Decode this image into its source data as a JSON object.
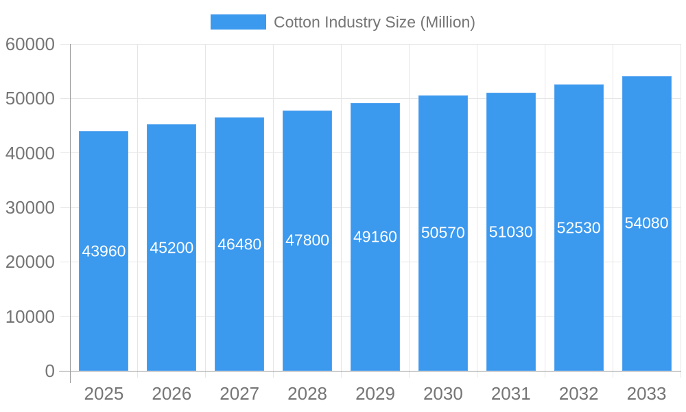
{
  "legend": {
    "label": "Cotton Industry Size (Million)",
    "swatch_color": "#3b99ee"
  },
  "chart_data": {
    "type": "bar",
    "title": "Cotton Industry Size (Million)",
    "series_name": "Cotton Industry Size (Million)",
    "categories": [
      "2025",
      "2026",
      "2027",
      "2028",
      "2029",
      "2030",
      "2031",
      "2032",
      "2033"
    ],
    "values": [
      43960,
      45200,
      46480,
      47800,
      49160,
      50570,
      51030,
      52530,
      54080
    ],
    "xlabel": "",
    "ylabel": "",
    "ylim": [
      0,
      60000
    ],
    "yticks": [
      0,
      10000,
      20000,
      30000,
      40000,
      50000,
      60000
    ],
    "grid": true,
    "legend_position": "top",
    "bar_color": "#3b99ee",
    "bar_border_color": "#55a5f0",
    "annotation_color": "#ffffff",
    "axis_text_color": "#757575",
    "axis_line_color": "#999999",
    "gridline_color": "#e6e6e6"
  }
}
